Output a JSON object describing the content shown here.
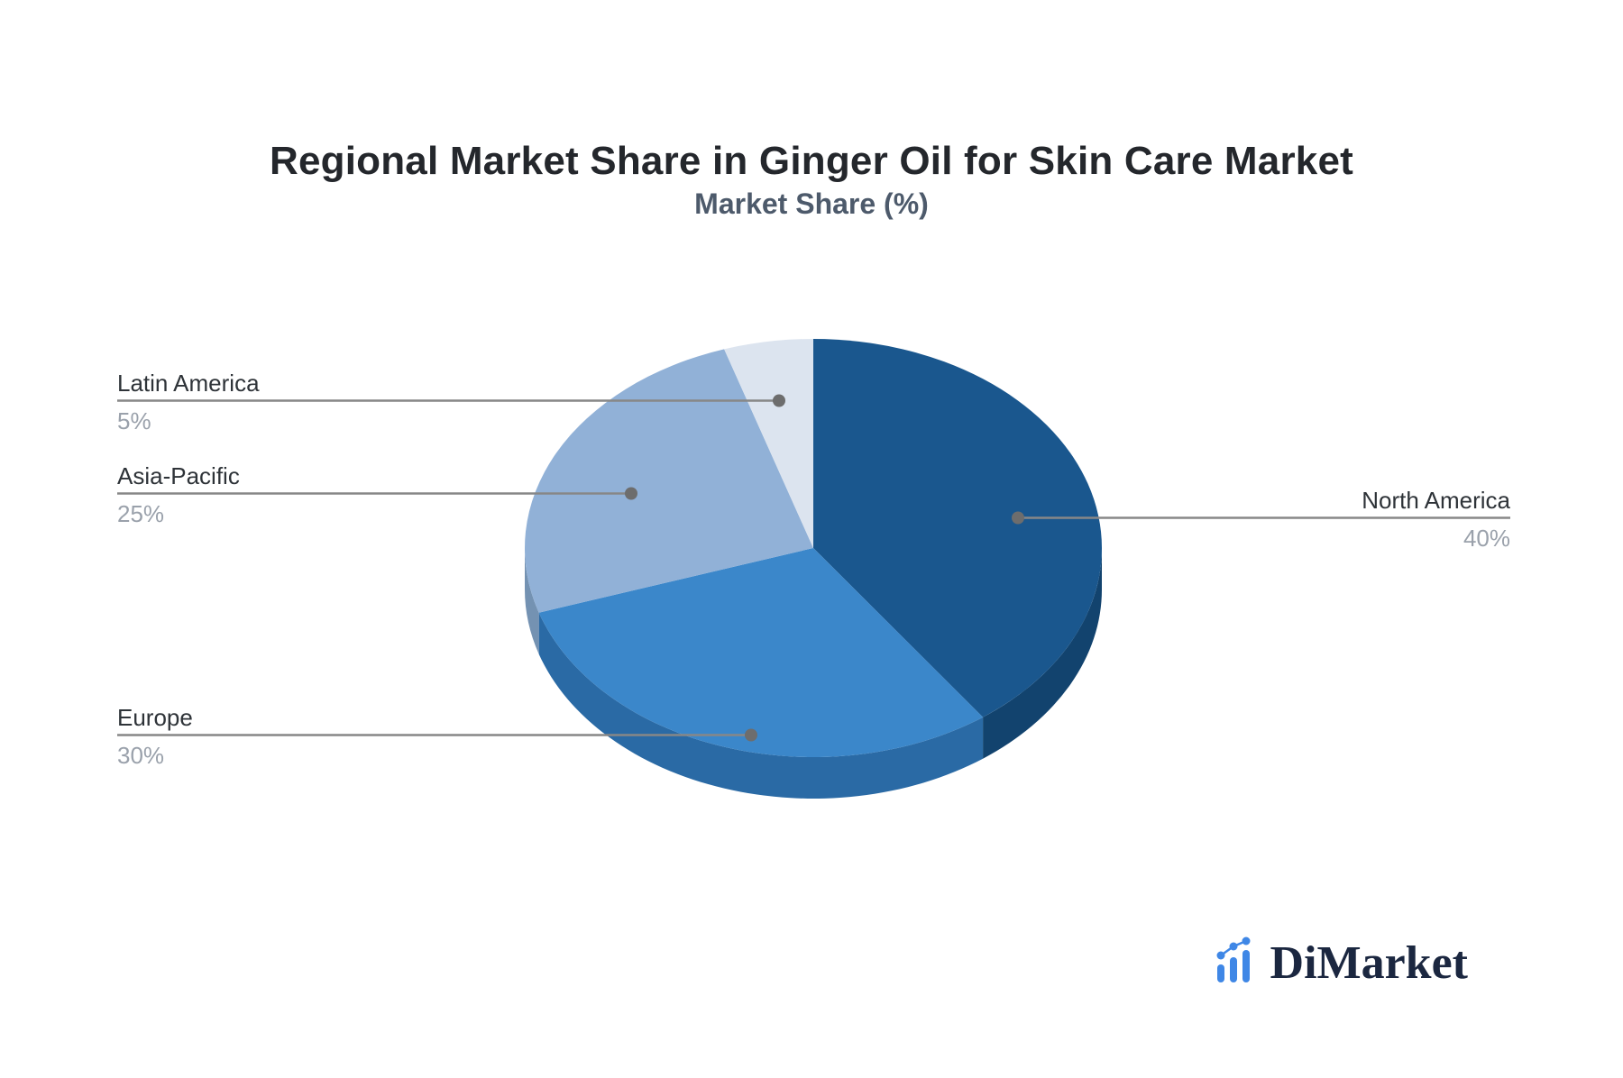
{
  "title": "Regional Market Share in Ginger Oil for Skin Care Market",
  "subtitle": "Market Share (%)",
  "logo": {
    "brand": "DiMarket",
    "icon": "bar-line-chart-icon",
    "icon_color": "#3f87e6",
    "text_color": "#1b2740"
  },
  "chart_data": {
    "type": "pie",
    "is_3d": true,
    "start_angle_deg": 0,
    "direction": "clockwise",
    "title": "Regional Market Share in Ginger Oil for Skin Care Market",
    "subtitle": "Market Share (%)",
    "categories": [
      "North America",
      "Europe",
      "Asia-Pacific",
      "Latin America"
    ],
    "values": [
      40,
      30,
      25,
      5
    ],
    "labels": [
      "40%",
      "30%",
      "25%",
      "5%"
    ],
    "colors": [
      "#1A578E",
      "#3B87CA",
      "#91B1D7",
      "#DCE4EF"
    ],
    "side_colors": [
      "#12436E",
      "#2A6AA5",
      "#7492B2",
      "#B9C4D3"
    ],
    "legend_position": "none",
    "data_labels": "outside, name above gray connector line with percent below",
    "connector_color": "#878787",
    "label_name_color": "#2e3338",
    "label_percent_color": "#9aa1ab"
  }
}
